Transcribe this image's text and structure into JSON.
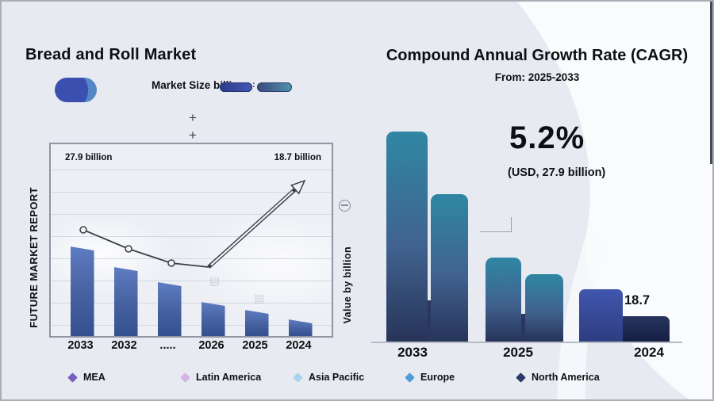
{
  "left_section": {
    "title": "Bread and Roll Market",
    "series_label": "Market Size billion",
    "ratio_separator": ":",
    "side_watermark": "FUTURE MARKET REPORT",
    "plus_marks": [
      "+",
      "+"
    ]
  },
  "right_section": {
    "title": "Compound Annual Growth Rate (CAGR)",
    "subtitle": "From: 2025-2033",
    "cagr_value": "5.2%",
    "cagr_note": "(USD, 27.9 billion)",
    "axis_label": "Value by billion"
  },
  "chart_data": [
    {
      "type": "bar",
      "title": "Bread and Roll Market",
      "series_label": "Market Size billion",
      "categories": [
        "2033",
        "2032",
        ".....",
        "2026",
        "2025",
        "2024"
      ],
      "values_relative": [
        100,
        77,
        60,
        38,
        29,
        19
      ],
      "annotations": {
        "top_left": "27.9 billion",
        "top_right": "18.7 billion"
      },
      "trend_line": {
        "shape": "declines with 3 circle markers from 2033 to 2026, then outlined arrow rises to top-right",
        "marker_count": 3
      },
      "grid": true,
      "bar_color_top": "#5e7cc2",
      "bar_color_bottom": "#33508f"
    },
    {
      "type": "bar",
      "title": "Compound Annual Growth Rate (CAGR)",
      "subtitle": "From: 2025-2033",
      "categories": [
        "2033",
        "2025",
        "2024"
      ],
      "series": [
        {
          "name": "primary-bar",
          "values_relative": [
            100,
            40,
            25
          ]
        },
        {
          "name": "secondary-bar",
          "values_relative": [
            70,
            32,
            12
          ]
        }
      ],
      "data_labels": [
        {
          "category": "2024",
          "series": "secondary-bar",
          "text": "18.7"
        }
      ],
      "ylabel": "Value by billion",
      "grid": false,
      "bar_color_top": "#2f87a3",
      "bar_color_bottom": "#273459",
      "color_2024_left": "#4156ae",
      "color_2024_right": "#28345f"
    }
  ],
  "bottom_legend": [
    {
      "label": "MEA",
      "color": "#7a5fc0"
    },
    {
      "label": "Latin America",
      "color": "#d5b3e4"
    },
    {
      "label": "Asia Pacific",
      "color": "#a9d2ec"
    },
    {
      "label": "Europe",
      "color": "#4d9ddd"
    },
    {
      "label": "North America",
      "color": "#2c3a6b"
    }
  ]
}
